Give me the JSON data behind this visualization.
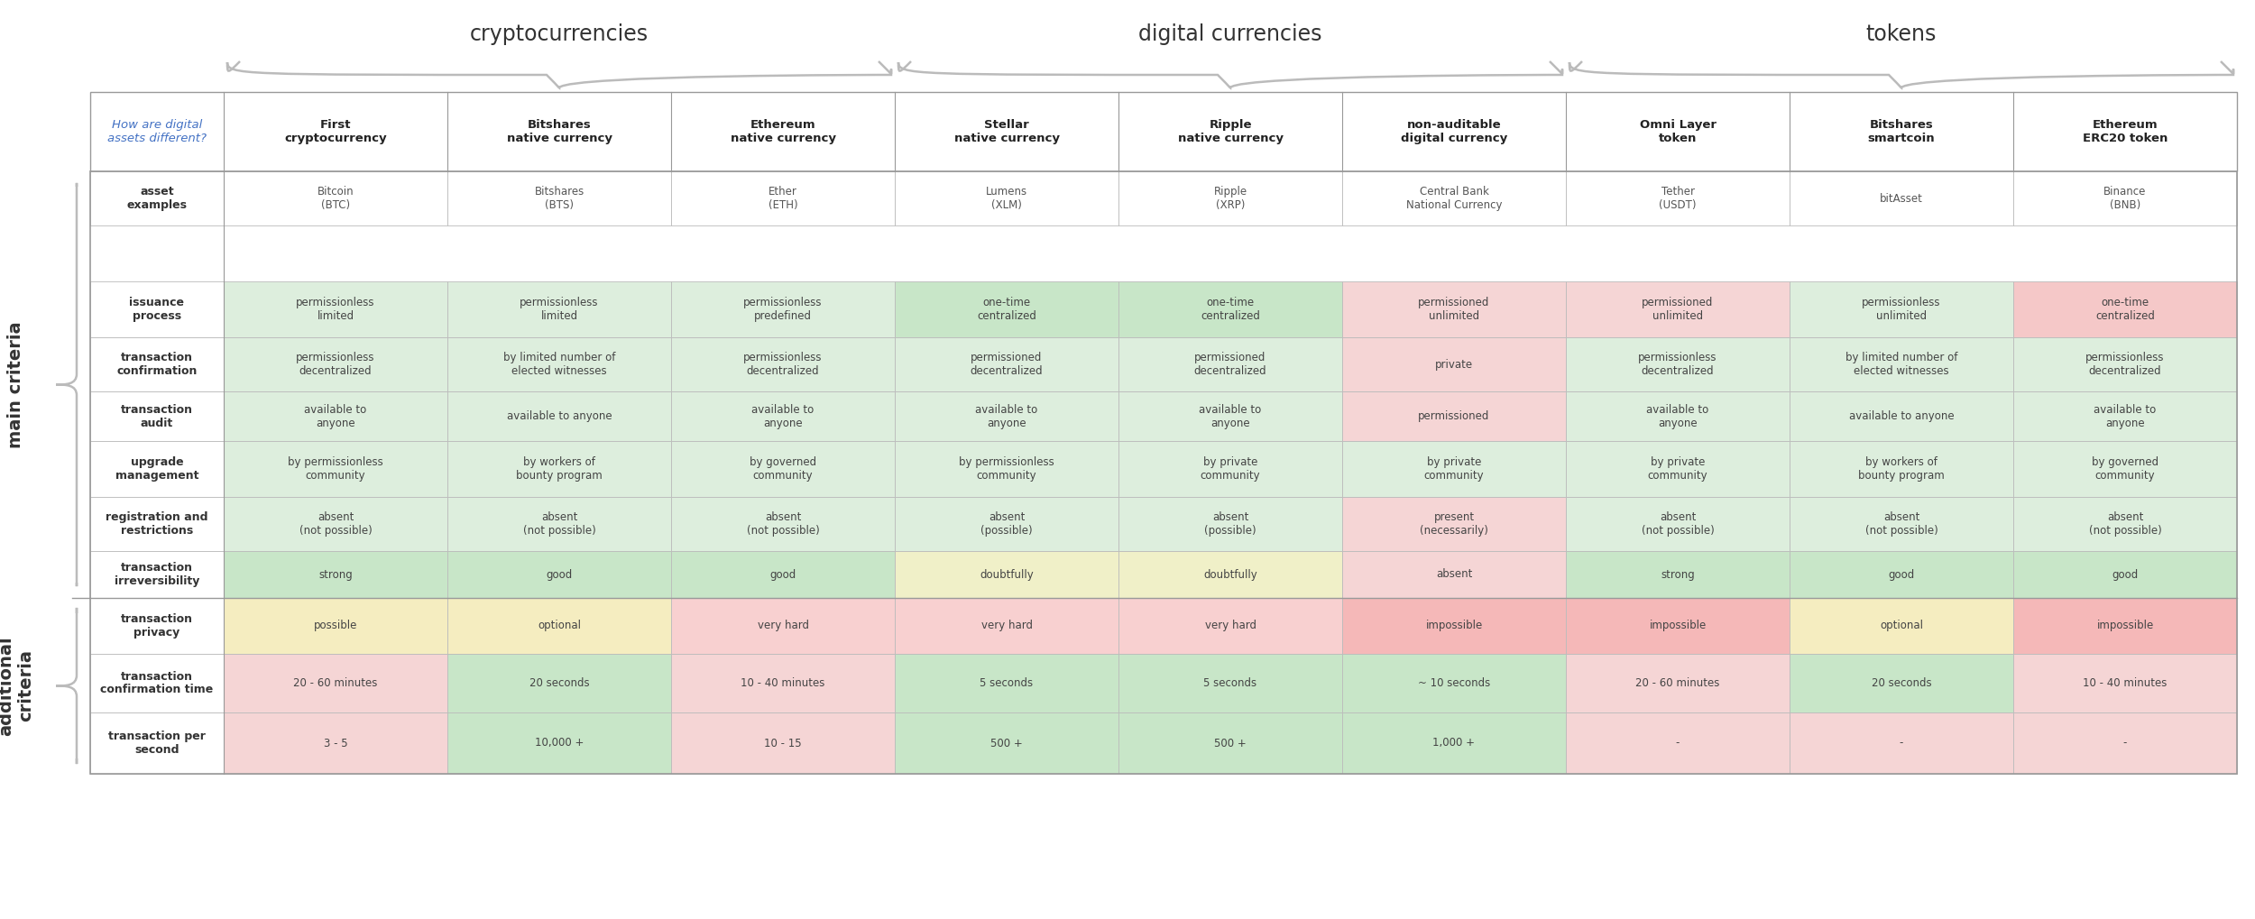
{
  "group_titles": [
    "cryptocurrencies",
    "digital currencies",
    "tokens"
  ],
  "group_col_ranges": [
    [
      0,
      2
    ],
    [
      3,
      5
    ],
    [
      6,
      8
    ]
  ],
  "col_headers": [
    "First\ncryptocurrency",
    "Bitshares\nnative currency",
    "Ethereum\nnative currency",
    "Stellar\nnative currency",
    "Ripple\nnative currency",
    "non-auditable\ndigital currency",
    "Omni Layer\ntoken",
    "Bitshares\nsmartcoin",
    "Ethereum\nERC20 token"
  ],
  "asset_row": [
    "Bitcoin\n(BTC)",
    "Bitshares\n(BTS)",
    "Ether\n(ETH)",
    "Lumens\n(XLM)",
    "Ripple\n(XRP)",
    "Central Bank\nNational Currency",
    "Tether\n(USDT)",
    "bitAsset",
    "Binance\n(BNB)"
  ],
  "row_labels": [
    "asset\nexamples",
    "issuance\nprocess",
    "transaction\nconfirmation",
    "transaction\naudit",
    "upgrade\nmanagement",
    "registration and\nrestrictions",
    "transaction\nirreversibility",
    "transaction\nprivacy",
    "transaction\nconfirmation time",
    "transaction per\nsecond"
  ],
  "left_label_main": "main criteria",
  "left_label_additional": "additional\ncriteria",
  "how_are_label": "How are digital\nassets different?",
  "how_are_color": "#4472c4",
  "table_data": [
    [
      "Bitcoin\n(BTC)",
      "Bitshares\n(BTS)",
      "Ether\n(ETH)",
      "Lumens\n(XLM)",
      "Ripple\n(XRP)",
      "Central Bank\nNational Currency",
      "Tether\n(USDT)",
      "bitAsset",
      "Binance\n(BNB)"
    ],
    [
      "permissionless\nlimited",
      "permissionless\nlimited",
      "permissionless\npredefined",
      "one-time\ncentralized",
      "one-time\ncentralized",
      "permissioned\nunlimited",
      "permissioned\nunlimited",
      "permissionless\nunlimited",
      "one-time\ncentralized"
    ],
    [
      "permissionless\ndecentralized",
      "by limited number of\nelected witnesses",
      "permissionless\ndecentralized",
      "permissioned\ndecentralized",
      "permissioned\ndecentralized",
      "private",
      "permissionless\ndecentralized",
      "by limited number of\nelected witnesses",
      "permissionless\ndecentralized"
    ],
    [
      "available to\nanyone",
      "available to anyone",
      "available to\nanyone",
      "available to\nanyone",
      "available to\nanyone",
      "permissioned",
      "available to\nanyone",
      "available to anyone",
      "available to\nanyone"
    ],
    [
      "by permissionless\ncommunity",
      "by workers of\nbounty program",
      "by governed\ncommunity",
      "by permissionless\ncommunity",
      "by private\ncommunity",
      "by private\ncommunity",
      "by private\ncommunity",
      "by workers of\nbounty program",
      "by governed\ncommunity"
    ],
    [
      "absent\n(not possible)",
      "absent\n(not possible)",
      "absent\n(not possible)",
      "absent\n(possible)",
      "absent\n(possible)",
      "present\n(necessarily)",
      "absent\n(not possible)",
      "absent\n(not possible)",
      "absent\n(not possible)"
    ],
    [
      "strong",
      "good",
      "good",
      "doubtfully",
      "doubtfully",
      "absent",
      "strong",
      "good",
      "good"
    ],
    [
      "possible",
      "optional",
      "very hard",
      "very hard",
      "very hard",
      "impossible",
      "impossible",
      "optional",
      "impossible"
    ],
    [
      "20 - 60 minutes",
      "20 seconds",
      "10 - 40 minutes",
      "5 seconds",
      "5 seconds",
      "~ 10 seconds",
      "20 - 60 minutes",
      "20 seconds",
      "10 - 40 minutes"
    ],
    [
      "3 - 5",
      "10,000 +",
      "10 - 15",
      "500 +",
      "500 +",
      "1,000 +",
      "-",
      "-",
      "-"
    ]
  ],
  "cell_colors": [
    [
      "#ffffff",
      "#ffffff",
      "#ffffff",
      "#ffffff",
      "#ffffff",
      "#ffffff",
      "#ffffff",
      "#ffffff",
      "#ffffff"
    ],
    [
      "#ddeedd",
      "#ddeedd",
      "#ddeedd",
      "#c8e6c8",
      "#c8e6c8",
      "#f5d5d5",
      "#f5d5d5",
      "#ddeedd",
      "#f5c8c8"
    ],
    [
      "#ddeedd",
      "#ddeedd",
      "#ddeedd",
      "#ddeedd",
      "#ddeedd",
      "#f5d5d5",
      "#ddeedd",
      "#ddeedd",
      "#ddeedd"
    ],
    [
      "#ddeedd",
      "#ddeedd",
      "#ddeedd",
      "#ddeedd",
      "#ddeedd",
      "#f5d5d5",
      "#ddeedd",
      "#ddeedd",
      "#ddeedd"
    ],
    [
      "#ddeedd",
      "#ddeedd",
      "#ddeedd",
      "#ddeedd",
      "#ddeedd",
      "#ddeedd",
      "#ddeedd",
      "#ddeedd",
      "#ddeedd"
    ],
    [
      "#ddeedd",
      "#ddeedd",
      "#ddeedd",
      "#ddeedd",
      "#ddeedd",
      "#f5d5d5",
      "#ddeedd",
      "#ddeedd",
      "#ddeedd"
    ],
    [
      "#c8e6c8",
      "#c8e6c8",
      "#c8e6c8",
      "#f0f0c8",
      "#f0f0c8",
      "#f5d5d5",
      "#c8e6c8",
      "#c8e6c8",
      "#c8e6c8"
    ],
    [
      "#f5edc0",
      "#f5edc0",
      "#f8d0d0",
      "#f8d0d0",
      "#f8d0d0",
      "#f5b8b8",
      "#f5b8b8",
      "#f5edc0",
      "#f5b8b8"
    ],
    [
      "#f5d5d5",
      "#c8e6c8",
      "#f5d5d5",
      "#c8e6c8",
      "#c8e6c8",
      "#c8e6c8",
      "#f5d5d5",
      "#c8e6c8",
      "#f5d5d5"
    ],
    [
      "#f5d5d5",
      "#c8e6c8",
      "#f5d5d5",
      "#c8e6c8",
      "#c8e6c8",
      "#c8e6c8",
      "#f5d5d5",
      "#f5d5d5",
      "#f5d5d5"
    ]
  ],
  "bg_color": "#ffffff",
  "n_main_rows": 7,
  "n_additional_rows": 3
}
